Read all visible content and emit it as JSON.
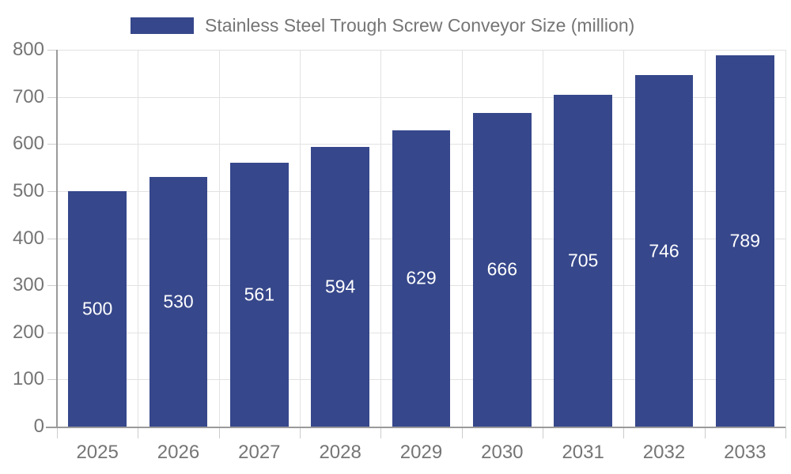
{
  "legend": {
    "label": "Stainless Steel Trough Screw Conveyor Size (million)",
    "position": "top"
  },
  "chart_data": {
    "type": "bar",
    "title": "Stainless Steel Trough Screw Conveyor Size (million)",
    "categories": [
      "2025",
      "2026",
      "2027",
      "2028",
      "2029",
      "2030",
      "2031",
      "2032",
      "2033"
    ],
    "values": [
      500,
      530,
      561,
      594,
      629,
      666,
      705,
      746,
      789
    ],
    "xlabel": "",
    "ylabel": "",
    "ylim": [
      0,
      800
    ],
    "yticks": [
      0,
      100,
      200,
      300,
      400,
      500,
      600,
      700,
      800
    ],
    "grid": true,
    "legend_position": "top",
    "value_labels": "inside-center",
    "colors": {
      "bar": "#36478B",
      "value_label": "#FFFFFF",
      "axis_text": "#757575",
      "legend_text": "#757575",
      "gridline": "#E2E2E2",
      "axis_line": "#9A9A9A",
      "tick": "#CCCCCC",
      "background": "#FFFFFF"
    }
  }
}
